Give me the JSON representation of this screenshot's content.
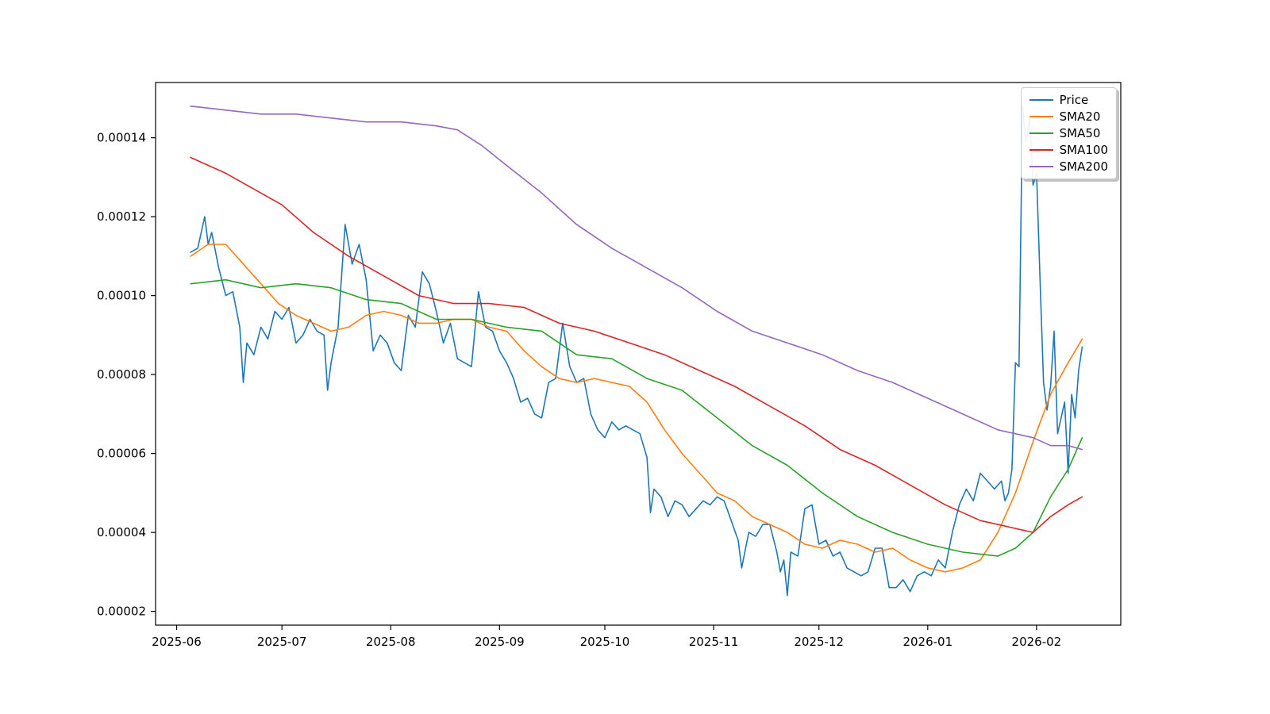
{
  "figure": {
    "background": "#ffffff",
    "axis_color": "#000000"
  },
  "chart_data": {
    "type": "line",
    "title": "",
    "xlabel": "",
    "ylabel": "",
    "grid": false,
    "legend_position": "upper right",
    "xlim": [
      "2025-05-26",
      "2026-02-25"
    ],
    "ylim": [
      1.65e-05,
      0.000154
    ],
    "x_ticks": [
      {
        "label": "2025-06",
        "date": "2025-06-01"
      },
      {
        "label": "2025-07",
        "date": "2025-07-01"
      },
      {
        "label": "2025-08",
        "date": "2025-08-01"
      },
      {
        "label": "2025-09",
        "date": "2025-09-01"
      },
      {
        "label": "2025-10",
        "date": "2025-10-01"
      },
      {
        "label": "2025-11",
        "date": "2025-11-01"
      },
      {
        "label": "2025-12",
        "date": "2025-12-01"
      },
      {
        "label": "2026-01",
        "date": "2026-01-01"
      },
      {
        "label": "2026-02",
        "date": "2026-02-01"
      }
    ],
    "y_ticks": [
      {
        "label": "0.00002",
        "value": 2e-05
      },
      {
        "label": "0.00004",
        "value": 4e-05
      },
      {
        "label": "0.00006",
        "value": 6e-05
      },
      {
        "label": "0.00008",
        "value": 8e-05
      },
      {
        "label": "0.00010",
        "value": 0.0001
      },
      {
        "label": "0.00012",
        "value": 0.00012
      },
      {
        "label": "0.00014",
        "value": 0.00014
      }
    ],
    "series": [
      {
        "name": "Price",
        "color": "#1f77b4",
        "x": [
          "2025-06-05",
          "2025-06-07",
          "2025-06-09",
          "2025-06-10",
          "2025-06-11",
          "2025-06-13",
          "2025-06-15",
          "2025-06-17",
          "2025-06-19",
          "2025-06-20",
          "2025-06-21",
          "2025-06-23",
          "2025-06-25",
          "2025-06-27",
          "2025-06-29",
          "2025-07-01",
          "2025-07-03",
          "2025-07-05",
          "2025-07-07",
          "2025-07-09",
          "2025-07-11",
          "2025-07-13",
          "2025-07-14",
          "2025-07-15",
          "2025-07-17",
          "2025-07-19",
          "2025-07-21",
          "2025-07-23",
          "2025-07-25",
          "2025-07-27",
          "2025-07-29",
          "2025-07-31",
          "2025-08-02",
          "2025-08-04",
          "2025-08-06",
          "2025-08-08",
          "2025-08-10",
          "2025-08-12",
          "2025-08-14",
          "2025-08-16",
          "2025-08-18",
          "2025-08-20",
          "2025-08-22",
          "2025-08-24",
          "2025-08-26",
          "2025-08-28",
          "2025-08-30",
          "2025-09-01",
          "2025-09-03",
          "2025-09-05",
          "2025-09-07",
          "2025-09-09",
          "2025-09-11",
          "2025-09-13",
          "2025-09-15",
          "2025-09-17",
          "2025-09-19",
          "2025-09-21",
          "2025-09-23",
          "2025-09-25",
          "2025-09-27",
          "2025-09-29",
          "2025-10-01",
          "2025-10-03",
          "2025-10-05",
          "2025-10-07",
          "2025-10-09",
          "2025-10-11",
          "2025-10-13",
          "2025-10-14",
          "2025-10-15",
          "2025-10-17",
          "2025-10-19",
          "2025-10-21",
          "2025-10-23",
          "2025-10-25",
          "2025-10-27",
          "2025-10-29",
          "2025-10-31",
          "2025-11-02",
          "2025-11-04",
          "2025-11-06",
          "2025-11-08",
          "2025-11-09",
          "2025-11-11",
          "2025-11-13",
          "2025-11-15",
          "2025-11-17",
          "2025-11-19",
          "2025-11-20",
          "2025-11-21",
          "2025-11-22",
          "2025-11-23",
          "2025-11-25",
          "2025-11-27",
          "2025-11-29",
          "2025-12-01",
          "2025-12-03",
          "2025-12-05",
          "2025-12-07",
          "2025-12-09",
          "2025-12-11",
          "2025-12-13",
          "2025-12-15",
          "2025-12-17",
          "2025-12-19",
          "2025-12-21",
          "2025-12-23",
          "2025-12-25",
          "2025-12-27",
          "2025-12-29",
          "2025-12-31",
          "2026-01-02",
          "2026-01-04",
          "2026-01-06",
          "2026-01-08",
          "2026-01-10",
          "2026-01-12",
          "2026-01-14",
          "2026-01-16",
          "2026-01-18",
          "2026-01-20",
          "2026-01-22",
          "2026-01-23",
          "2026-01-24",
          "2026-01-25",
          "2026-01-26",
          "2026-01-27",
          "2026-01-28",
          "2026-01-29",
          "2026-01-30",
          "2026-01-31",
          "2026-02-01",
          "2026-02-02",
          "2026-02-03",
          "2026-02-04",
          "2026-02-05",
          "2026-02-06",
          "2026-02-07",
          "2026-02-08",
          "2026-02-09",
          "2026-02-10",
          "2026-02-11",
          "2026-02-12",
          "2026-02-13",
          "2026-02-14"
        ],
        "y": [
          0.000111,
          0.000112,
          0.00012,
          0.000113,
          0.000116,
          0.000107,
          0.0001,
          0.000101,
          9.2e-05,
          7.8e-05,
          8.8e-05,
          8.5e-05,
          9.2e-05,
          8.9e-05,
          9.6e-05,
          9.4e-05,
          9.7e-05,
          8.8e-05,
          9e-05,
          9.4e-05,
          9.1e-05,
          9e-05,
          7.6e-05,
          8.3e-05,
          9.2e-05,
          0.000118,
          0.000108,
          0.000113,
          0.000104,
          8.6e-05,
          9e-05,
          8.8e-05,
          8.3e-05,
          8.1e-05,
          9.5e-05,
          9.2e-05,
          0.000106,
          0.000103,
          9.6e-05,
          8.8e-05,
          9.3e-05,
          8.4e-05,
          8.3e-05,
          8.2e-05,
          0.000101,
          9.2e-05,
          9.1e-05,
          8.6e-05,
          8.3e-05,
          7.9e-05,
          7.3e-05,
          7.4e-05,
          7e-05,
          6.9e-05,
          7.8e-05,
          7.9e-05,
          9.3e-05,
          8.2e-05,
          7.8e-05,
          7.9e-05,
          7e-05,
          6.6e-05,
          6.4e-05,
          6.8e-05,
          6.6e-05,
          6.7e-05,
          6.6e-05,
          6.5e-05,
          5.9e-05,
          4.5e-05,
          5.1e-05,
          4.9e-05,
          4.4e-05,
          4.8e-05,
          4.7e-05,
          4.4e-05,
          4.6e-05,
          4.8e-05,
          4.7e-05,
          4.9e-05,
          4.8e-05,
          4.3e-05,
          3.8e-05,
          3.1e-05,
          4e-05,
          3.9e-05,
          4.2e-05,
          4.2e-05,
          3.5e-05,
          3e-05,
          3.3e-05,
          2.4e-05,
          3.5e-05,
          3.4e-05,
          4.6e-05,
          4.7e-05,
          3.7e-05,
          3.8e-05,
          3.4e-05,
          3.5e-05,
          3.1e-05,
          3e-05,
          2.9e-05,
          3e-05,
          3.6e-05,
          3.6e-05,
          2.6e-05,
          2.6e-05,
          2.8e-05,
          2.5e-05,
          2.9e-05,
          3e-05,
          2.9e-05,
          3.3e-05,
          3.1e-05,
          4e-05,
          4.7e-05,
          5.1e-05,
          4.8e-05,
          5.5e-05,
          5.3e-05,
          5.1e-05,
          5.3e-05,
          4.8e-05,
          5e-05,
          5.6e-05,
          8.3e-05,
          8.2e-05,
          0.000148,
          0.000139,
          0.000145,
          0.000128,
          0.000131,
          0.000104,
          7.8e-05,
          7.1e-05,
          7.7e-05,
          9.1e-05,
          6.5e-05,
          6.9e-05,
          7.3e-05,
          5.5e-05,
          7.5e-05,
          6.9e-05,
          8.1e-05,
          8.7e-05
        ]
      },
      {
        "name": "SMA20",
        "color": "#ff7f0e",
        "x": [
          "2025-06-05",
          "2025-06-10",
          "2025-06-15",
          "2025-06-20",
          "2025-06-25",
          "2025-06-30",
          "2025-07-05",
          "2025-07-10",
          "2025-07-15",
          "2025-07-20",
          "2025-07-25",
          "2025-07-30",
          "2025-08-04",
          "2025-08-09",
          "2025-08-14",
          "2025-08-19",
          "2025-08-24",
          "2025-08-29",
          "2025-09-03",
          "2025-09-08",
          "2025-09-13",
          "2025-09-18",
          "2025-09-23",
          "2025-09-28",
          "2025-10-03",
          "2025-10-08",
          "2025-10-13",
          "2025-10-18",
          "2025-10-23",
          "2025-10-28",
          "2025-11-02",
          "2025-11-07",
          "2025-11-12",
          "2025-11-17",
          "2025-11-22",
          "2025-11-27",
          "2025-12-02",
          "2025-12-07",
          "2025-12-12",
          "2025-12-17",
          "2025-12-22",
          "2025-12-27",
          "2026-01-01",
          "2026-01-06",
          "2026-01-11",
          "2026-01-16",
          "2026-01-21",
          "2026-01-26",
          "2026-01-31",
          "2026-02-05",
          "2026-02-10",
          "2026-02-14"
        ],
        "y": [
          0.00011,
          0.000113,
          0.000113,
          0.000108,
          0.000103,
          9.8e-05,
          9.5e-05,
          9.3e-05,
          9.1e-05,
          9.2e-05,
          9.5e-05,
          9.6e-05,
          9.5e-05,
          9.3e-05,
          9.3e-05,
          9.4e-05,
          9.4e-05,
          9.2e-05,
          9.1e-05,
          8.6e-05,
          8.2e-05,
          7.9e-05,
          7.8e-05,
          7.9e-05,
          7.8e-05,
          7.7e-05,
          7.3e-05,
          6.6e-05,
          6e-05,
          5.5e-05,
          5e-05,
          4.8e-05,
          4.4e-05,
          4.2e-05,
          4e-05,
          3.7e-05,
          3.6e-05,
          3.8e-05,
          3.7e-05,
          3.5e-05,
          3.6e-05,
          3.3e-05,
          3.1e-05,
          3e-05,
          3.1e-05,
          3.3e-05,
          4e-05,
          5e-05,
          6.3e-05,
          7.5e-05,
          8.3e-05,
          8.9e-05
        ]
      },
      {
        "name": "SMA50",
        "color": "#2ca02c",
        "x": [
          "2025-06-05",
          "2025-06-15",
          "2025-06-25",
          "2025-07-05",
          "2025-07-15",
          "2025-07-25",
          "2025-08-04",
          "2025-08-14",
          "2025-08-24",
          "2025-09-03",
          "2025-09-13",
          "2025-09-23",
          "2025-10-03",
          "2025-10-13",
          "2025-10-23",
          "2025-11-02",
          "2025-11-12",
          "2025-11-22",
          "2025-12-02",
          "2025-12-12",
          "2025-12-22",
          "2026-01-01",
          "2026-01-11",
          "2026-01-21",
          "2026-01-26",
          "2026-01-31",
          "2026-02-05",
          "2026-02-10",
          "2026-02-14"
        ],
        "y": [
          0.000103,
          0.000104,
          0.000102,
          0.000103,
          0.000102,
          9.9e-05,
          9.8e-05,
          9.4e-05,
          9.4e-05,
          9.2e-05,
          9.1e-05,
          8.5e-05,
          8.4e-05,
          7.9e-05,
          7.6e-05,
          6.9e-05,
          6.2e-05,
          5.7e-05,
          5e-05,
          4.4e-05,
          4e-05,
          3.7e-05,
          3.5e-05,
          3.4e-05,
          3.6e-05,
          4e-05,
          4.9e-05,
          5.6e-05,
          6.4e-05
        ]
      },
      {
        "name": "SMA100",
        "color": "#d62728",
        "x": [
          "2025-06-05",
          "2025-06-15",
          "2025-06-25",
          "2025-07-01",
          "2025-07-10",
          "2025-07-20",
          "2025-07-30",
          "2025-08-09",
          "2025-08-19",
          "2025-08-29",
          "2025-09-08",
          "2025-09-18",
          "2025-09-28",
          "2025-10-08",
          "2025-10-18",
          "2025-10-28",
          "2025-11-07",
          "2025-11-17",
          "2025-11-27",
          "2025-12-07",
          "2025-12-17",
          "2025-12-27",
          "2026-01-06",
          "2026-01-16",
          "2026-01-26",
          "2026-01-31",
          "2026-02-05",
          "2026-02-10",
          "2026-02-14"
        ],
        "y": [
          0.000135,
          0.000131,
          0.000126,
          0.000123,
          0.000116,
          0.00011,
          0.000105,
          0.0001,
          9.8e-05,
          9.8e-05,
          9.7e-05,
          9.3e-05,
          9.1e-05,
          8.8e-05,
          8.5e-05,
          8.1e-05,
          7.7e-05,
          7.2e-05,
          6.7e-05,
          6.1e-05,
          5.7e-05,
          5.2e-05,
          4.7e-05,
          4.3e-05,
          4.1e-05,
          4e-05,
          4.4e-05,
          4.7e-05,
          4.9e-05
        ]
      },
      {
        "name": "SMA200",
        "color": "#9467bd",
        "x": [
          "2025-06-05",
          "2025-06-15",
          "2025-06-25",
          "2025-07-05",
          "2025-07-15",
          "2025-07-25",
          "2025-08-04",
          "2025-08-14",
          "2025-08-20",
          "2025-08-27",
          "2025-09-03",
          "2025-09-13",
          "2025-09-23",
          "2025-10-03",
          "2025-10-13",
          "2025-10-23",
          "2025-11-02",
          "2025-11-12",
          "2025-11-22",
          "2025-12-02",
          "2025-12-12",
          "2025-12-22",
          "2026-01-01",
          "2026-01-11",
          "2026-01-21",
          "2026-01-31",
          "2026-02-05",
          "2026-02-10",
          "2026-02-14"
        ],
        "y": [
          0.000148,
          0.000147,
          0.000146,
          0.000146,
          0.000145,
          0.000144,
          0.000144,
          0.000143,
          0.000142,
          0.000138,
          0.000133,
          0.000126,
          0.000118,
          0.000112,
          0.000107,
          0.000102,
          9.6e-05,
          9.1e-05,
          8.8e-05,
          8.5e-05,
          8.1e-05,
          7.8e-05,
          7.4e-05,
          7e-05,
          6.6e-05,
          6.4e-05,
          6.2e-05,
          6.2e-05,
          6.1e-05
        ]
      }
    ]
  }
}
